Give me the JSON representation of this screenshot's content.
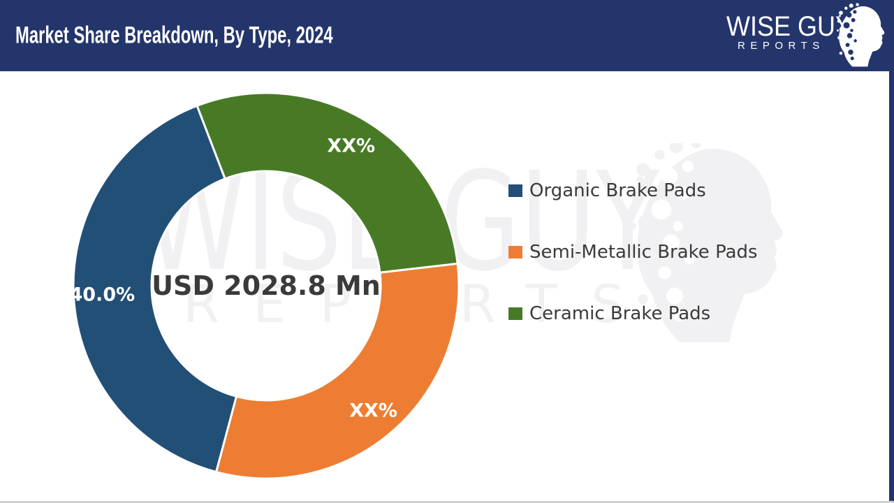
{
  "header": {
    "title": "Market Share Breakdown, By Type, 2024",
    "logo": {
      "line1": "WISE GUY",
      "line2": "REPORTS"
    }
  },
  "watermark": {
    "line1": "WISE GUY",
    "line2": "REPORTS"
  },
  "chart_data": {
    "type": "pie",
    "subtype": "donut",
    "title": "Market Share Breakdown, By Type, 2024",
    "center_label": "USD 2028.8 Mn",
    "units": "percent",
    "start_angle_deg": 111,
    "direction": "counterclockwise",
    "legend_position": "right",
    "slices": [
      {
        "name": "Organic Brake Pads",
        "color": "#224F76",
        "percent": 40.0,
        "label": "40.0%"
      },
      {
        "name": "Semi-Metallic Brake Pads",
        "color": "#ED7D33",
        "percent": 31.0,
        "label": "XX%"
      },
      {
        "name": "Ceramic Brake Pads",
        "color": "#487A26",
        "percent": 29.0,
        "label": "XX%"
      }
    ]
  },
  "colors": {
    "header_bg": "#23356B",
    "text_dark": "#3A3A3A",
    "watermark": "#F1F1F3",
    "slice_label": "#FFFFFF"
  }
}
